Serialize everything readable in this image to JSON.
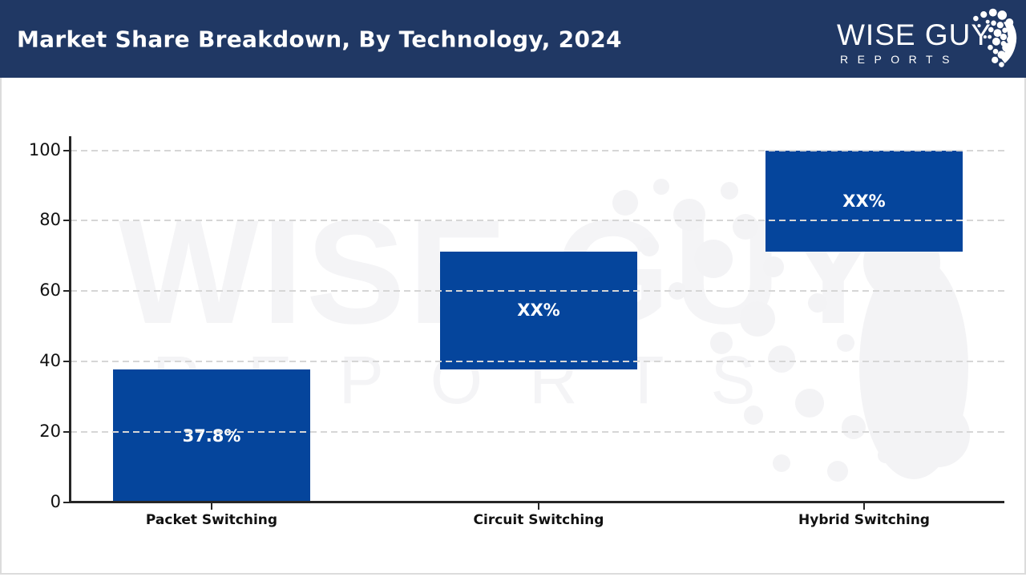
{
  "header": {
    "title": "Market Share Breakdown, By Technology, 2024",
    "background_color": "#203864",
    "logo": {
      "line1": "WISE GUY",
      "line2": "REPORTS"
    }
  },
  "watermark": {
    "line1": "WISE GUY",
    "line2": "REPORTS"
  },
  "chart_data": {
    "type": "bar",
    "variant": "floating-waterfall-percent",
    "title": "Market Share Breakdown, By Technology, 2024",
    "categories": [
      "Packet Switching",
      "Circuit Switching",
      "Hybrid Switching"
    ],
    "segments": [
      {
        "category": "Packet Switching",
        "start": 0,
        "end": 37.8,
        "label": "37.8%"
      },
      {
        "category": "Circuit Switching",
        "start": 37.8,
        "end": 71.3,
        "label": "XX%"
      },
      {
        "category": "Hybrid Switching",
        "start": 71.3,
        "end": 100,
        "label": "XX%"
      }
    ],
    "y_ticks": [
      0,
      20,
      40,
      60,
      80,
      100
    ],
    "ylim": [
      0,
      104
    ],
    "xlabel": "",
    "ylabel": "",
    "bar_color": "#05459c",
    "bar_label_color": "#ffffff",
    "grid": "horizontal dashed",
    "grid_color": "#d6d6d6",
    "axis_color": "#262626",
    "legend": "none"
  }
}
